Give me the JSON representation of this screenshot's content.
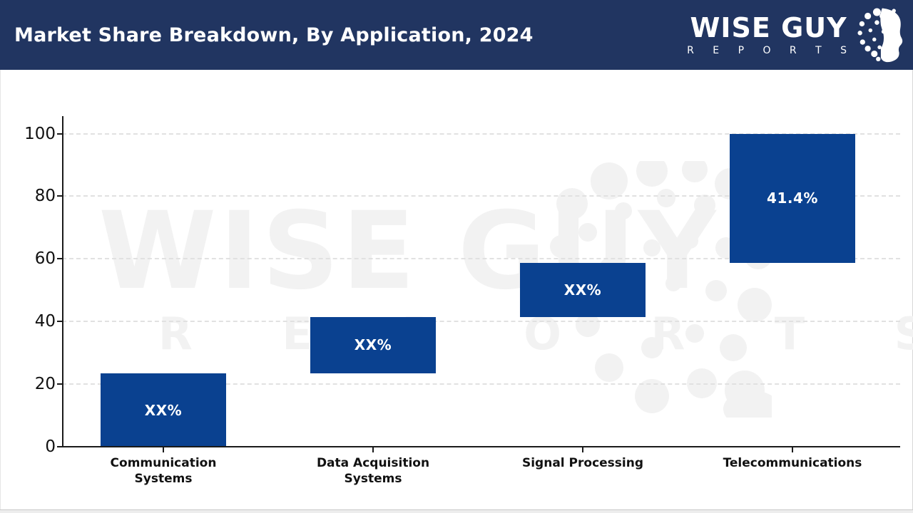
{
  "header": {
    "title": "Market Share Breakdown, By Application, 2024",
    "background_color": "#213561",
    "logo": {
      "line1": "WISE GUY",
      "line2": "R E P O R T S"
    }
  },
  "watermark": {
    "line1": "WISE GUY",
    "line2": "R E P O R T S"
  },
  "chart_data": {
    "type": "bar",
    "subtype": "waterfall-breakdown",
    "title": "Market Share Breakdown, By Application, 2024",
    "categories": [
      "Communication\nSystems",
      "Data Acquisition\nSystems",
      "Signal Processing",
      "Telecommunications"
    ],
    "series": [
      {
        "category": "Communication Systems",
        "base": 0,
        "top": 23.4,
        "label": "XX%"
      },
      {
        "category": "Data Acquisition Systems",
        "base": 23.4,
        "top": 41.5,
        "label": "XX%"
      },
      {
        "category": "Signal Processing",
        "base": 41.5,
        "top": 58.6,
        "label": "XX%"
      },
      {
        "category": "Telecommunications",
        "base": 58.6,
        "top": 100,
        "label": "41.4%"
      }
    ],
    "yticks": [
      0,
      20,
      40,
      60,
      80,
      100
    ],
    "ylim": [
      0,
      105.5
    ],
    "xlabel": "",
    "ylabel": "",
    "grid": "horizontal-dashed",
    "legend": "none",
    "bar_color": "#0a4190",
    "bar_label_color": "#ffffff",
    "gridline_color": "#e1e1e1",
    "axis_color": "#1a1a1a"
  }
}
